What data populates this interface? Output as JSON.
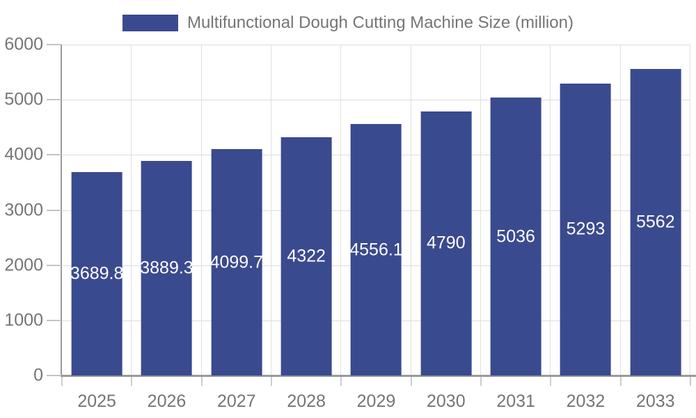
{
  "chart_data": {
    "type": "bar",
    "title": "Multifunctional Dough Cutting Machine Size (million)",
    "legend": {
      "position": "top",
      "entries": [
        {
          "label": "Multifunctional Dough Cutting Machine Size (million)",
          "color": "#3A4A8E"
        }
      ]
    },
    "categories": [
      "2025",
      "2026",
      "2027",
      "2028",
      "2029",
      "2030",
      "2031",
      "2032",
      "2033"
    ],
    "values": [
      3689.8,
      3889.3,
      4099.7,
      4322,
      4556.1,
      4790,
      5036,
      5293,
      5562
    ],
    "value_labels": [
      "3689.8",
      "3889.3",
      "4099.7",
      "4322",
      "4556.1",
      "4790",
      "5036",
      "5293",
      "5562"
    ],
    "value_label_placement": "inside-center",
    "xlabel": "",
    "ylabel": "",
    "ylim": [
      0,
      6000
    ],
    "yticks": [
      0,
      1000,
      2000,
      3000,
      4000,
      5000,
      6000
    ],
    "grid": "horizontal-and-vertical-category-boundaries",
    "colors": {
      "bar": "#3A4A8E",
      "axis_line": "#999999",
      "gridline": "#e0e0e0",
      "tick": "#c9c9c9",
      "axis_text": "#757575",
      "bar_value_text": "#ffffff",
      "background": "#ffffff"
    }
  }
}
